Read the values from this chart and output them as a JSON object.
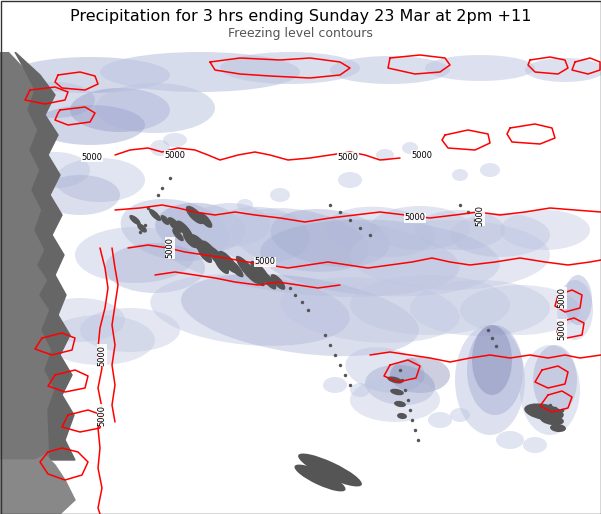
{
  "title": "Precipitation for 3 hrs ending Sunday 23 Mar at 2pm +11",
  "subtitle": "Freezing level contours",
  "title_fontsize": 11.5,
  "subtitle_fontsize": 9,
  "bg_ocean": "#dce3f0",
  "header_bg": "#ffffff",
  "precip_light": "#bdc5e0",
  "precip_medium": "#9aa3cc",
  "precip_dark": "#7078aa",
  "precip_darkest": "#4a5090",
  "land_color": "#888888",
  "land_dark": "#555555",
  "contour_red": "#ff0000",
  "label_5000": "5000",
  "fig_width": 6.01,
  "fig_height": 5.14,
  "dpi": 100
}
